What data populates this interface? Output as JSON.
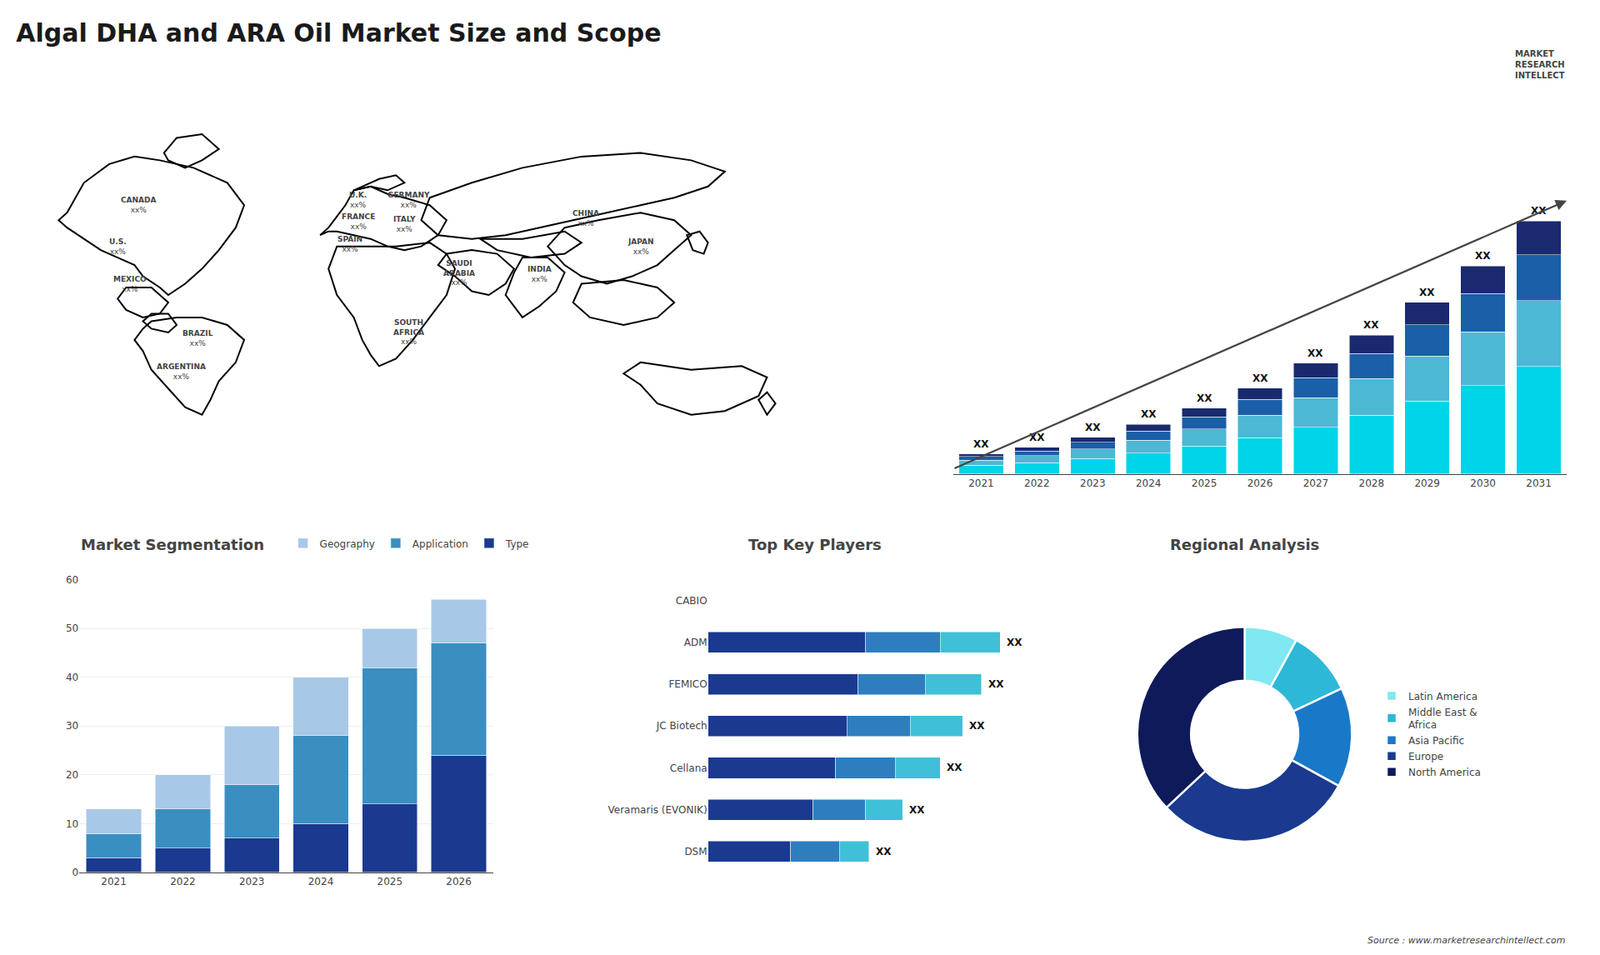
{
  "title": "Algal DHA and ARA Oil Market Size and Scope",
  "annotations": [
    "MARKET\nRESEARCH\nINTELLECT",
    "Source : www.marketresearchintellect.com"
  ],
  "chart_data": [
    {
      "type": "map",
      "categories": [
        "CANADA",
        "U.S.",
        "MEXICO",
        "BRAZIL",
        "ARGENTINA",
        "U.K.",
        "FRANCE",
        "SPAIN",
        "GERMANY",
        "ITALY",
        "SAUDI\nARABIA",
        "SOUTH\nAFRICA",
        "CHINA",
        "JAPAN",
        "INDIA"
      ],
      "value_labels": [
        "xx%",
        "xx%",
        "xx%",
        "xx%",
        "xx%",
        "xx%",
        "xx%",
        "xx%",
        "xx%",
        "xx%",
        "xx%",
        "xx%",
        "xx%",
        "xx%",
        "xx%"
      ],
      "tick_labels": false
    },
    {
      "type": "bar",
      "stacked": true,
      "categories": [
        "2021",
        "2022",
        "2023",
        "2024",
        "2025",
        "2026",
        "2027",
        "2028",
        "2029",
        "2030",
        "2031"
      ],
      "series": [
        {
          "color": "#00d4e8",
          "values": [
            0.5,
            0.65,
            0.9,
            1.2,
            1.6,
            2.1,
            2.7,
            3.4,
            4.2,
            5.1,
            6.2
          ]
        },
        {
          "color": "#4db8d4",
          "values": [
            0.3,
            0.4,
            0.55,
            0.75,
            1.0,
            1.3,
            1.7,
            2.1,
            2.6,
            3.1,
            3.8
          ]
        },
        {
          "color": "#1a5fa8",
          "values": [
            0.2,
            0.28,
            0.38,
            0.52,
            0.7,
            0.9,
            1.15,
            1.45,
            1.8,
            2.2,
            2.65
          ]
        },
        {
          "color": "#1a2a6e",
          "values": [
            0.15,
            0.2,
            0.28,
            0.38,
            0.5,
            0.65,
            0.85,
            1.05,
            1.3,
            1.6,
            1.95
          ]
        }
      ],
      "annotations": [
        "XX",
        "XX",
        "XX",
        "XX",
        "XX",
        "XX",
        "XX",
        "XX",
        "XX",
        "XX",
        "XX"
      ],
      "ylim": [
        0,
        19.71
      ],
      "tick_labels": "x"
    },
    {
      "type": "bar",
      "title": "Market Segmentation",
      "stacked": true,
      "categories": [
        "2021",
        "2022",
        "2023",
        "2024",
        "2025",
        "2026"
      ],
      "series": [
        {
          "name": "Type",
          "color": "#1a3a8f",
          "values": [
            3,
            5,
            7,
            10,
            14,
            24
          ]
        },
        {
          "name": "Application",
          "color": "#3a8fc0",
          "values": [
            5,
            8,
            11,
            18,
            28,
            23
          ]
        },
        {
          "name": "Geography",
          "color": "#a8c8e8",
          "values": [
            5,
            7,
            12,
            12,
            8,
            9
          ]
        }
      ],
      "ylim": [
        0,
        60
      ],
      "yticks": [
        0,
        10,
        20,
        30,
        40,
        50,
        60
      ],
      "grid": true,
      "legend": "top"
    },
    {
      "type": "bar",
      "title": "Top Key Players",
      "orientation": "horizontal",
      "stacked": true,
      "categories": [
        "CABIO",
        "ADM",
        "FEMICO",
        "JC Biotech",
        "Cellana",
        "Veramaris (EVONIK)",
        "DSM"
      ],
      "series": [
        {
          "color": "#1a3a8f",
          "values": [
            0,
            0.42,
            0.4,
            0.37,
            0.34,
            0.28,
            0.22
          ]
        },
        {
          "color": "#2e7ebf",
          "values": [
            0,
            0.2,
            0.18,
            0.17,
            0.16,
            0.14,
            0.13
          ]
        },
        {
          "color": "#40c0d8",
          "values": [
            0,
            0.16,
            0.15,
            0.14,
            0.12,
            0.1,
            0.08
          ]
        }
      ],
      "annotations": [
        null,
        "XX",
        "XX",
        "XX",
        "XX",
        "XX",
        "XX"
      ],
      "xlim": [
        0,
        0.9
      ],
      "tick_labels": "y"
    },
    {
      "type": "donut",
      "title": "Regional Analysis",
      "categories": [
        "Latin America",
        "Middle East &\nAfrica",
        "Asia Pacific",
        "Europe",
        "North America"
      ],
      "values": [
        8,
        10,
        15,
        30,
        37
      ],
      "colors": [
        "#7fe8f0",
        "#2eb8d8",
        "#1a78c8",
        "#1a3a8f",
        "#0e1a5a"
      ],
      "legend": "right"
    }
  ]
}
